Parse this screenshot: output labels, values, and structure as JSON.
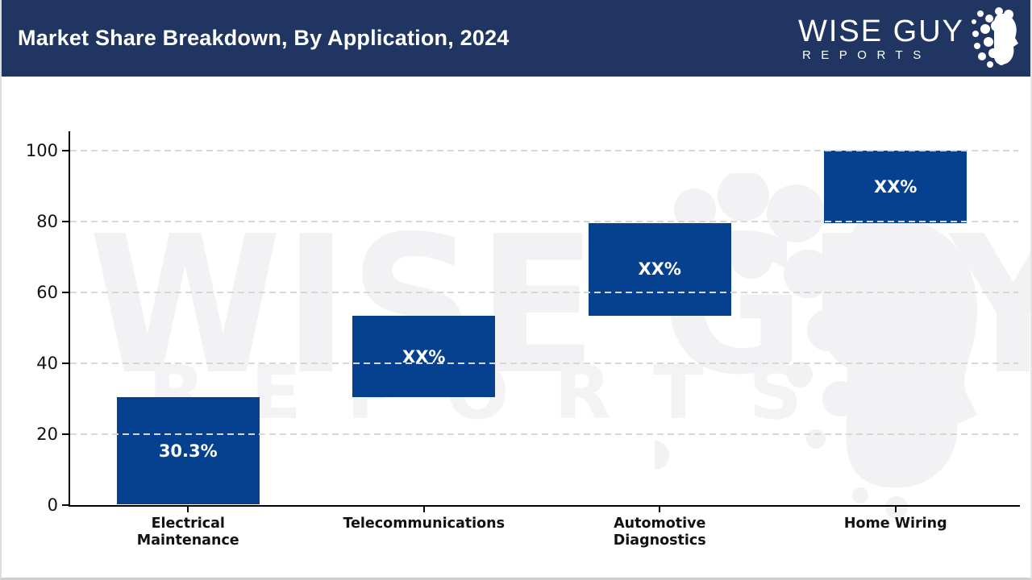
{
  "header": {
    "title": "Market Share Breakdown, By Application, 2024",
    "logo": {
      "wordmark": "WISE GUY",
      "subtext": "REPORTS"
    }
  },
  "watermark": {
    "wordmark": "WISE GUY",
    "subtext": "REPORTS"
  },
  "colors": {
    "header_bg": "#203562",
    "bar_fill": "#05418f",
    "bar_label": "#ffffff",
    "gridline": "#d8d8d8",
    "axis": "#000000",
    "watermark": "#f2f2f4"
  },
  "chart_data": {
    "type": "bar",
    "subtype": "waterfall",
    "title": "Market Share Breakdown, By Application, 2024",
    "categories": [
      "Electrical\nMaintenance",
      "Telecommunications",
      "Automotive\nDiagnostics",
      "Home Wiring"
    ],
    "segments": [
      {
        "category": "Electrical Maintenance",
        "start": 0,
        "end": 30.3,
        "value": 30.3,
        "label": "30.3%"
      },
      {
        "category": "Telecommunications",
        "start": 30.3,
        "end": 53.3,
        "value": 23.0,
        "label": "XX%"
      },
      {
        "category": "Automotive Diagnostics",
        "start": 53.3,
        "end": 79.5,
        "value": 26.2,
        "label": "XX%"
      },
      {
        "category": "Home Wiring",
        "start": 79.5,
        "end": 100,
        "value": 20.5,
        "label": "XX%"
      }
    ],
    "xlabel": "",
    "ylabel": "",
    "ylim": [
      0,
      100
    ],
    "yticks": [
      0,
      20,
      40,
      60,
      80,
      100
    ],
    "grid": "horizontal-dashed",
    "legend": "none"
  }
}
